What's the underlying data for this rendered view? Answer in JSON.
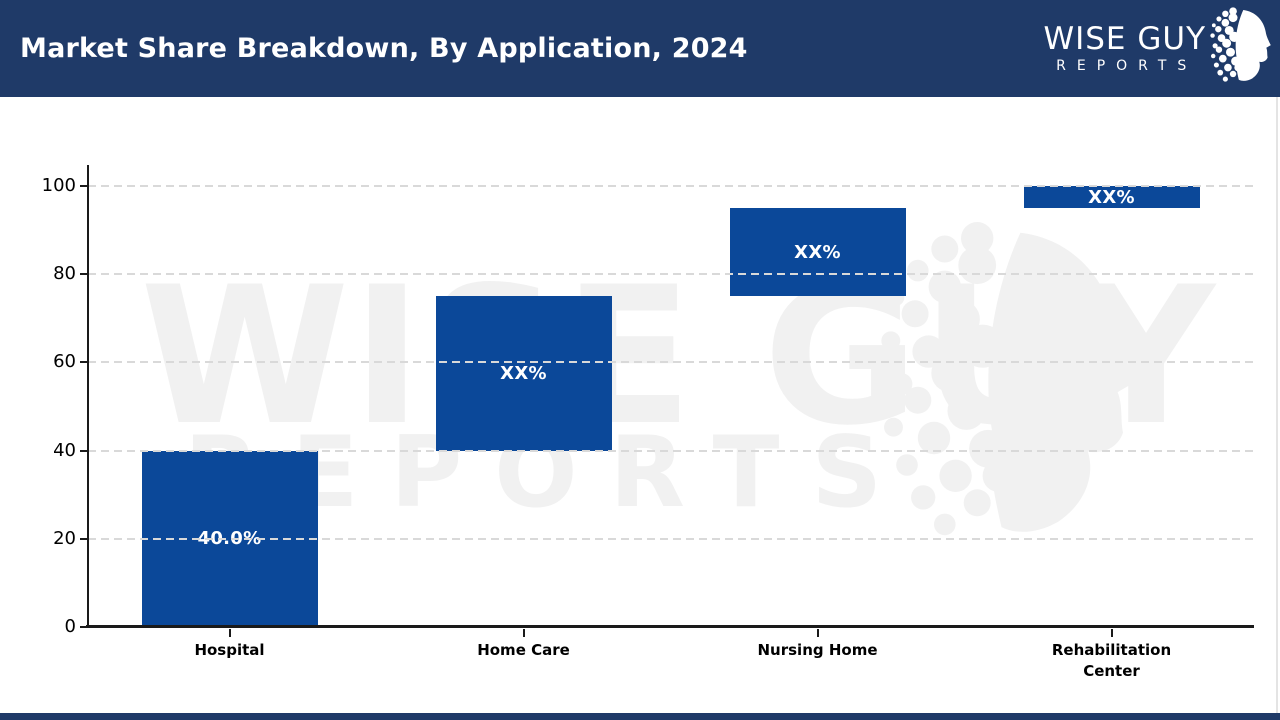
{
  "header": {
    "title": "Market Share Breakdown, By Application, 2024",
    "logo": {
      "brand": "WISE GUY",
      "sub": "REPORTS"
    },
    "bg_color": "#1f3a68"
  },
  "watermark": {
    "top": "WISE GUY",
    "bottom": "REPORTS"
  },
  "chart_data": {
    "type": "bar",
    "subtype": "floating-segment (waterfall style market share)",
    "title": "Market Share Breakdown, By Application, 2024",
    "categories": [
      "Hospital",
      "Home Care",
      "Nursing Home",
      "Rehabilitation Center"
    ],
    "segments": [
      {
        "category": "Hospital",
        "start": 0,
        "end": 40,
        "value": 40,
        "label": "40.0%"
      },
      {
        "category": "Home Care",
        "start": 40,
        "end": 75,
        "value": 35,
        "label": "XX%"
      },
      {
        "category": "Nursing Home",
        "start": 75,
        "end": 95,
        "value": 20,
        "label": "XX%"
      },
      {
        "category": "Rehabilitation Center",
        "start": 95,
        "end": 100,
        "value": 5,
        "label": "XX%"
      }
    ],
    "xlabel": "",
    "ylabel": "",
    "ylim": [
      0,
      100
    ],
    "yticks": [
      0,
      20,
      40,
      60,
      80,
      100
    ],
    "grid": true,
    "grid_style": "dashed",
    "legend": "none",
    "bar_color": "#0b4899",
    "bar_label_color": "#ffffff",
    "axis_color": "#1a1a1a",
    "gridline_color": "#d9d9d9"
  }
}
